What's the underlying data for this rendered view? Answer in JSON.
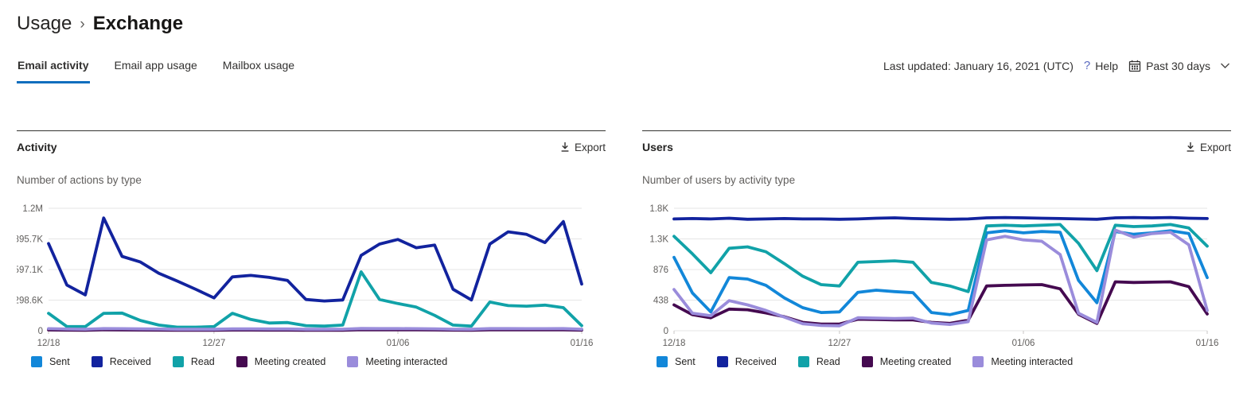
{
  "breadcrumb": {
    "parent": "Usage",
    "separator": "›",
    "current": "Exchange"
  },
  "tabs": [
    {
      "label": "Email activity",
      "active": true
    },
    {
      "label": "Email app usage",
      "active": false
    },
    {
      "label": "Mailbox usage",
      "active": false
    }
  ],
  "topbar": {
    "last_updated": "Last updated: January 16, 2021 (UTC)",
    "help_label": "Help",
    "range_label": "Past 30 days"
  },
  "colors": {
    "accent": "#106ebe",
    "grid": "#e6e6e6",
    "tick": "#c8c6c4",
    "axis_text": "#605e5c",
    "sent": "#1287d9",
    "received": "#12239e",
    "read": "#11a2a8",
    "meeting_created": "#450a50",
    "meeting_interacted": "#9a8cdb"
  },
  "chart_data": [
    {
      "type": "line",
      "title": "Activity",
      "export_label": "Export",
      "subtitle": "Number of actions by type",
      "legend_position": "bottom",
      "grid": true,
      "x": [
        "12/18",
        "12/19",
        "12/20",
        "12/21",
        "12/22",
        "12/23",
        "12/24",
        "12/25",
        "12/26",
        "12/27",
        "12/28",
        "12/29",
        "12/30",
        "12/31",
        "01/01",
        "01/02",
        "01/03",
        "01/04",
        "01/05",
        "01/06",
        "01/07",
        "01/08",
        "01/09",
        "01/10",
        "01/11",
        "01/12",
        "01/13",
        "01/14",
        "01/15",
        "01/16"
      ],
      "x_tick_indices": [
        0,
        9,
        19,
        29
      ],
      "ylim": [
        0,
        1194300
      ],
      "y_ticks": [
        {
          "value": 0,
          "label": "0"
        },
        {
          "value": 298600,
          "label": "298.6K"
        },
        {
          "value": 597100,
          "label": "597.1K"
        },
        {
          "value": 895700,
          "label": "895.7K"
        },
        {
          "value": 1194300,
          "label": "1.2M"
        }
      ],
      "series": [
        {
          "name": "Sent",
          "color": "#1287d9",
          "values": [
            15000,
            13000,
            12000,
            16000,
            15000,
            14000,
            12000,
            11000,
            11000,
            11000,
            14000,
            14000,
            13000,
            13000,
            11000,
            11000,
            12000,
            16000,
            15000,
            15000,
            14000,
            14000,
            12000,
            11000,
            15000,
            15000,
            14000,
            14000,
            15000,
            12000
          ]
        },
        {
          "name": "Received",
          "color": "#12239e",
          "values": [
            850000,
            445000,
            350000,
            1100000,
            725000,
            670000,
            560000,
            485000,
            405000,
            320000,
            525000,
            540000,
            520000,
            490000,
            305000,
            290000,
            300000,
            735000,
            845000,
            890000,
            810000,
            835000,
            405000,
            300000,
            845000,
            965000,
            940000,
            860000,
            1065000,
            455000
          ]
        },
        {
          "name": "Read",
          "color": "#11a2a8",
          "values": [
            170000,
            40000,
            40000,
            170000,
            172000,
            100000,
            55000,
            35000,
            35000,
            40000,
            170000,
            110000,
            75000,
            80000,
            50000,
            45000,
            55000,
            575000,
            305000,
            265000,
            230000,
            150000,
            55000,
            45000,
            280000,
            245000,
            240000,
            250000,
            225000,
            50000
          ]
        },
        {
          "name": "Meeting created",
          "color": "#450a50",
          "values": [
            8000,
            6000,
            5000,
            9000,
            8000,
            7000,
            6000,
            5000,
            5000,
            5000,
            7000,
            7000,
            6000,
            6000,
            5000,
            5000,
            5000,
            10000,
            9000,
            9000,
            9000,
            8000,
            6000,
            5000,
            9000,
            9000,
            9000,
            9000,
            9000,
            6000
          ]
        },
        {
          "name": "Meeting interacted",
          "color": "#9a8cdb",
          "values": [
            20000,
            16000,
            15000,
            21000,
            20000,
            18000,
            16000,
            14000,
            14000,
            14000,
            18000,
            18000,
            17000,
            17000,
            14000,
            14000,
            15000,
            22000,
            21000,
            21000,
            20000,
            19000,
            15000,
            14000,
            21000,
            21000,
            20000,
            20000,
            21000,
            15000
          ]
        }
      ]
    },
    {
      "type": "line",
      "title": "Users",
      "export_label": "Export",
      "subtitle": "Number of users by activity type",
      "legend_position": "bottom",
      "grid": true,
      "x": [
        "12/18",
        "12/19",
        "12/20",
        "12/21",
        "12/22",
        "12/23",
        "12/24",
        "12/25",
        "12/26",
        "12/27",
        "12/28",
        "12/29",
        "12/30",
        "12/31",
        "01/01",
        "01/02",
        "01/03",
        "01/04",
        "01/05",
        "01/06",
        "01/07",
        "01/08",
        "01/09",
        "01/10",
        "01/11",
        "01/12",
        "01/13",
        "01/14",
        "01/15",
        "01/16"
      ],
      "x_tick_indices": [
        0,
        9,
        19,
        29
      ],
      "ylim": [
        0,
        1752
      ],
      "y_ticks": [
        {
          "value": 0,
          "label": "0"
        },
        {
          "value": 438,
          "label": "438"
        },
        {
          "value": 876,
          "label": "876"
        },
        {
          "value": 1314,
          "label": "1.3K"
        },
        {
          "value": 1752,
          "label": "1.8K"
        }
      ],
      "series": [
        {
          "name": "Sent",
          "color": "#1287d9",
          "values": [
            1050,
            540,
            270,
            760,
            740,
            650,
            470,
            330,
            260,
            270,
            550,
            580,
            560,
            545,
            260,
            230,
            290,
            1400,
            1430,
            1400,
            1420,
            1410,
            720,
            400,
            1420,
            1380,
            1400,
            1430,
            1390,
            760
          ]
        },
        {
          "name": "Received",
          "color": "#12239e",
          "values": [
            1600,
            1605,
            1600,
            1610,
            1595,
            1600,
            1605,
            1600,
            1600,
            1595,
            1600,
            1610,
            1615,
            1605,
            1600,
            1595,
            1600,
            1615,
            1620,
            1615,
            1610,
            1605,
            1600,
            1595,
            1615,
            1620,
            1615,
            1620,
            1610,
            1605
          ]
        },
        {
          "name": "Read",
          "color": "#11a2a8",
          "values": [
            1350,
            1100,
            830,
            1180,
            1200,
            1130,
            960,
            780,
            660,
            640,
            980,
            990,
            1000,
            980,
            690,
            640,
            560,
            1500,
            1510,
            1500,
            1510,
            1520,
            1250,
            860,
            1510,
            1490,
            1500,
            1520,
            1470,
            1210
          ]
        },
        {
          "name": "Meeting created",
          "color": "#450a50",
          "values": [
            370,
            230,
            185,
            310,
            300,
            255,
            200,
            120,
            95,
            95,
            165,
            160,
            155,
            155,
            120,
            105,
            150,
            640,
            650,
            655,
            660,
            600,
            235,
            105,
            700,
            690,
            695,
            700,
            630,
            240
          ]
        },
        {
          "name": "Meeting interacted",
          "color": "#9a8cdb",
          "values": [
            590,
            250,
            215,
            430,
            370,
            290,
            195,
            100,
            75,
            70,
            185,
            180,
            175,
            180,
            110,
            90,
            130,
            1300,
            1350,
            1300,
            1280,
            1090,
            250,
            120,
            1440,
            1340,
            1390,
            1410,
            1230,
            290
          ]
        }
      ]
    }
  ]
}
